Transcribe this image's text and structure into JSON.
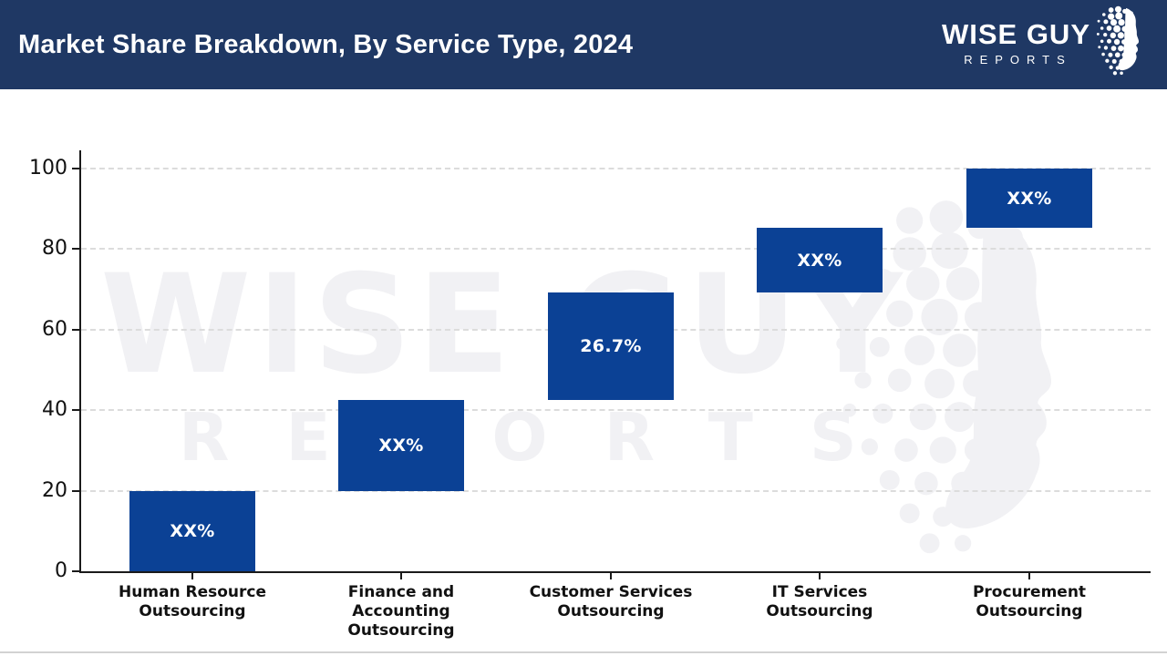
{
  "header": {
    "title": "Market Share Breakdown, By Service Type, 2024",
    "bg_color": "#1f3864",
    "logo": {
      "line1": "WISE GUY",
      "line2": "REPORTS"
    }
  },
  "watermark": {
    "line1": "WISE GUY",
    "line2": "REPORTS"
  },
  "chart_data": {
    "type": "bar",
    "variant": "waterfall",
    "title": "Market Share Breakdown, By Service Type, 2024",
    "xlabel": "",
    "ylabel": "",
    "ylim": [
      0,
      105
    ],
    "yticks": [
      0,
      20,
      40,
      60,
      80,
      100
    ],
    "grid": "horizontal-dashed",
    "bar_color": "#0b4195",
    "value_label_color": "#ffffff",
    "bars": [
      {
        "category": "Human Resource Outsourcing",
        "category_lines": [
          "Human Resource",
          "Outsourcing"
        ],
        "start": 0,
        "end": 20,
        "value_label": "XX%"
      },
      {
        "category": "Finance and Accounting Outsourcing",
        "category_lines": [
          "Finance and",
          "Accounting",
          "Outsourcing"
        ],
        "start": 20,
        "end": 42.5,
        "value_label": "XX%"
      },
      {
        "category": "Customer Services Outsourcing",
        "category_lines": [
          "Customer Services",
          "Outsourcing"
        ],
        "start": 42.5,
        "end": 69.2,
        "value_label": "26.7%"
      },
      {
        "category": "IT Services Outsourcing",
        "category_lines": [
          "IT Services",
          "Outsourcing"
        ],
        "start": 69.2,
        "end": 85.2,
        "value_label": "XX%"
      },
      {
        "category": "Procurement Outsourcing",
        "category_lines": [
          "Procurement",
          "Outsourcing"
        ],
        "start": 85.2,
        "end": 100,
        "value_label": "XX%"
      }
    ]
  }
}
